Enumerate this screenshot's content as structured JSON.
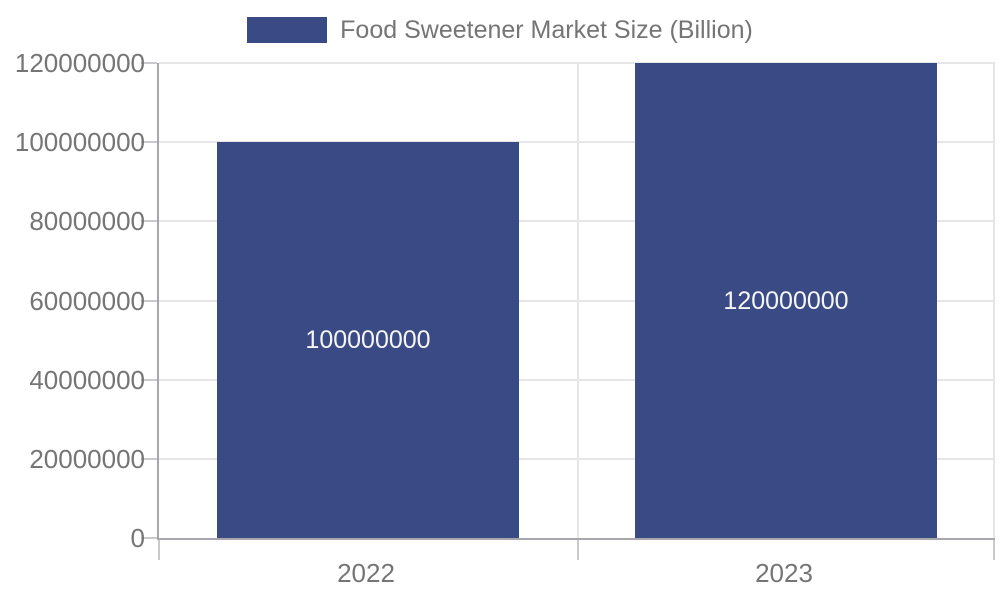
{
  "chart_data": {
    "type": "bar",
    "legend": {
      "position": "top",
      "label": "Food Sweetener Market Size (Billion)"
    },
    "categories": [
      "2022",
      "2023"
    ],
    "series": [
      {
        "name": "Food Sweetener Market Size (Billion)",
        "values": [
          100000000,
          120000000
        ]
      }
    ],
    "bar_value_labels": [
      "100000000",
      "120000000"
    ],
    "ylim": [
      0,
      120000000
    ],
    "yticks": [
      {
        "value": 0,
        "label": "0"
      },
      {
        "value": 20000000,
        "label": "20000000"
      },
      {
        "value": 40000000,
        "label": "40000000"
      },
      {
        "value": 60000000,
        "label": "60000000"
      },
      {
        "value": 80000000,
        "label": "80000000"
      },
      {
        "value": 100000000,
        "label": "100000000"
      },
      {
        "value": 120000000,
        "label": "120000000"
      }
    ],
    "grid": true,
    "colors": {
      "background": "#FFFFFF",
      "bar": "#3A4A85",
      "bar_label": "#F5F5F5",
      "axis_text": "#757575",
      "grid_line": "#E6E6E6",
      "tick_line": "#C9C9CE",
      "axis_line": "#A7A7AD"
    }
  }
}
